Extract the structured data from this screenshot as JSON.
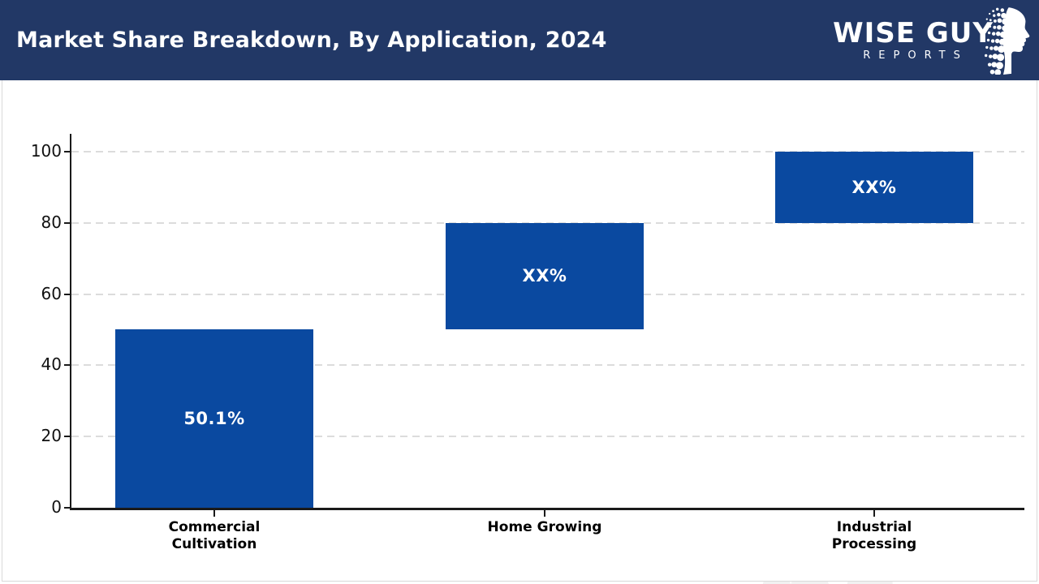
{
  "header": {
    "title": "Market Share Breakdown, By Application, 2024",
    "logo": {
      "wordmark": "WISE GUY",
      "subtitle": "REPORTS"
    }
  },
  "watermark": {
    "wordmark": "WISE GUY",
    "subtitle": "REPORTS"
  },
  "chart_data": {
    "type": "bar",
    "subtype": "floating-waterfall",
    "title": "Market Share Breakdown, By Application, 2024",
    "categories": [
      [
        "Commercial",
        "Cultivation"
      ],
      [
        "Home Growing"
      ],
      [
        "Industrial",
        "Processing"
      ]
    ],
    "series": [
      {
        "category": "Commercial Cultivation",
        "start": 0,
        "end": 50.1,
        "label": "50.1%"
      },
      {
        "category": "Home Growing",
        "start": 50.1,
        "end": 80,
        "label": "XX%"
      },
      {
        "category": "Industrial Processing",
        "start": 80,
        "end": 99.9,
        "label": "XX%"
      }
    ],
    "yticks": [
      0,
      20,
      40,
      60,
      80,
      100
    ],
    "ylim": [
      0,
      105
    ],
    "xlabel": "",
    "ylabel": "",
    "legend": false,
    "grid": "horizontal-dashed",
    "colors": {
      "bar": "#0A49A0",
      "grid": "#DCDCDC",
      "axis": "#1A1A1A",
      "header_bg": "#223866",
      "bar_label": "#FFFFFF",
      "watermark": "#F2F2F2"
    }
  }
}
